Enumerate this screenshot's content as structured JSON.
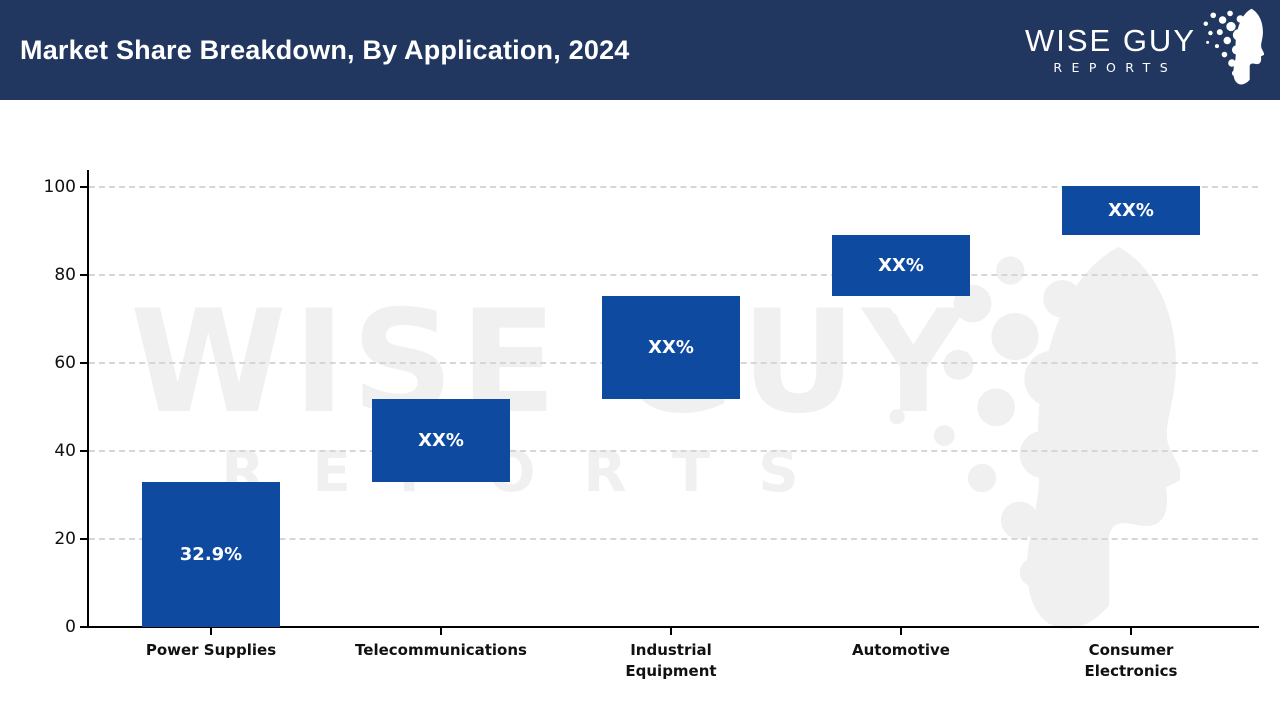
{
  "header": {
    "title": "Market Share Breakdown, By Application, 2024",
    "logo": {
      "wordmark": "WISE GUY",
      "subtext": "REPORTS"
    }
  },
  "watermark": {
    "wordmark": "WISE GUY",
    "subtext": "REPORTS"
  },
  "colors": {
    "header_bg": "#213760",
    "bar": "#0d4aa0",
    "grid": "#d6d6d6",
    "axis": "#000000",
    "text": "#111111",
    "bar_label": "#ffffff",
    "watermark": "#f0f0f0"
  },
  "chart_data": {
    "type": "bar",
    "subtype": "waterfall",
    "title": "Market Share Breakdown, By Application, 2024",
    "xlabel": "",
    "ylabel": "",
    "legend": "none",
    "grid": "horizontal-dashed",
    "ylim": [
      0,
      104
    ],
    "yticks": [
      0,
      20,
      40,
      60,
      80,
      100
    ],
    "categories": [
      "Power Supplies",
      "Telecommunications",
      "Industrial Equipment",
      "Automotive",
      "Consumer Electronics"
    ],
    "category_lines": [
      [
        "Power Supplies"
      ],
      [
        "Telecommunications"
      ],
      [
        "Industrial",
        "Equipment"
      ],
      [
        "Automotive"
      ],
      [
        "Consumer",
        "Electronics"
      ]
    ],
    "segments": [
      {
        "category": "Power Supplies",
        "start": 0,
        "end": 32.9,
        "label": "32.9%"
      },
      {
        "category": "Telecommunications",
        "start": 32.9,
        "end": 51.8,
        "label": "XX%"
      },
      {
        "category": "Industrial Equipment",
        "start": 51.8,
        "end": 75.2,
        "label": "XX%"
      },
      {
        "category": "Automotive",
        "start": 75.2,
        "end": 89.0,
        "label": "XX%"
      },
      {
        "category": "Consumer Electronics",
        "start": 89.0,
        "end": 100.2,
        "label": "XX%"
      }
    ]
  }
}
